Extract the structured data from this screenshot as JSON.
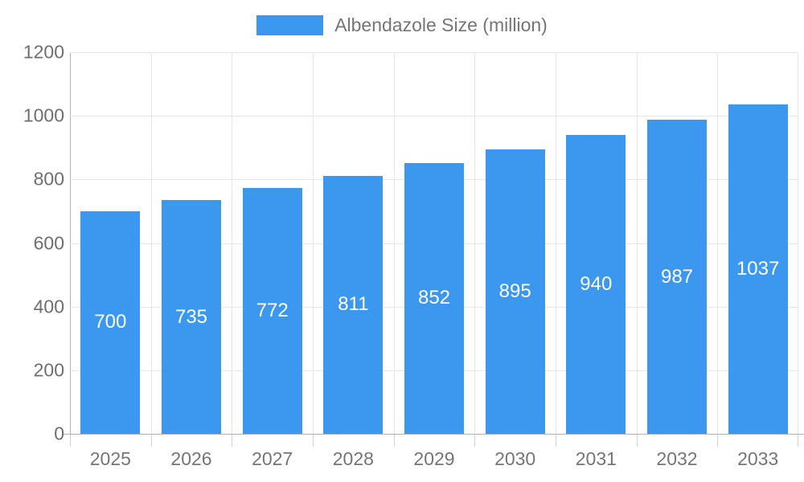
{
  "chart_data": {
    "type": "bar",
    "title": "",
    "legend": "Albendazole Size (million)",
    "legend_position": "top",
    "categories": [
      "2025",
      "2026",
      "2027",
      "2028",
      "2029",
      "2030",
      "2031",
      "2032",
      "2033"
    ],
    "series": [
      {
        "name": "Albendazole Size (million)",
        "values": [
          700,
          735,
          772,
          811,
          852,
          895,
          940,
          987,
          1037
        ]
      }
    ],
    "xlabel": "",
    "ylabel": "",
    "ylim": [
      0,
      1200
    ],
    "ytick_interval": 200,
    "ytick_labels": [
      "0",
      "200",
      "400",
      "600",
      "800",
      "1000",
      "1200"
    ],
    "grid": true,
    "bar_color": "#3B98EE",
    "value_label_color": "#ffffff",
    "axis_text_color": "#757575"
  }
}
